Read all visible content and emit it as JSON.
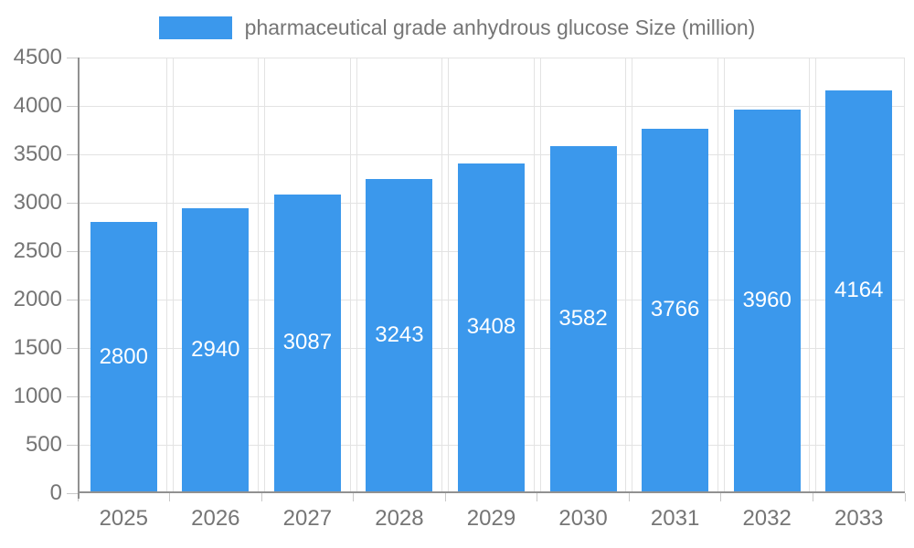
{
  "chart_data": {
    "type": "bar",
    "title": "pharmaceutical grade anhydrous glucose Size (million)",
    "categories": [
      "2025",
      "2026",
      "2027",
      "2028",
      "2029",
      "2030",
      "2031",
      "2032",
      "2033"
    ],
    "values": [
      2800,
      2940,
      3087,
      3243,
      3408,
      3582,
      3766,
      3960,
      4164
    ],
    "xlabel": "",
    "ylabel": "",
    "ylim": [
      0,
      4500
    ],
    "ytick_step": 500,
    "grid": "on",
    "legend_position": "top-center",
    "value_label_position": "inside-center",
    "colors": {
      "bar": "#3B98EC",
      "bar_label_text": "#FFFFFF",
      "axis_text": "#757575",
      "gridline": "#E3E3E3",
      "axis_line": "#919191",
      "tick": "#C9C9C9",
      "background": "#FFFFFF"
    }
  }
}
